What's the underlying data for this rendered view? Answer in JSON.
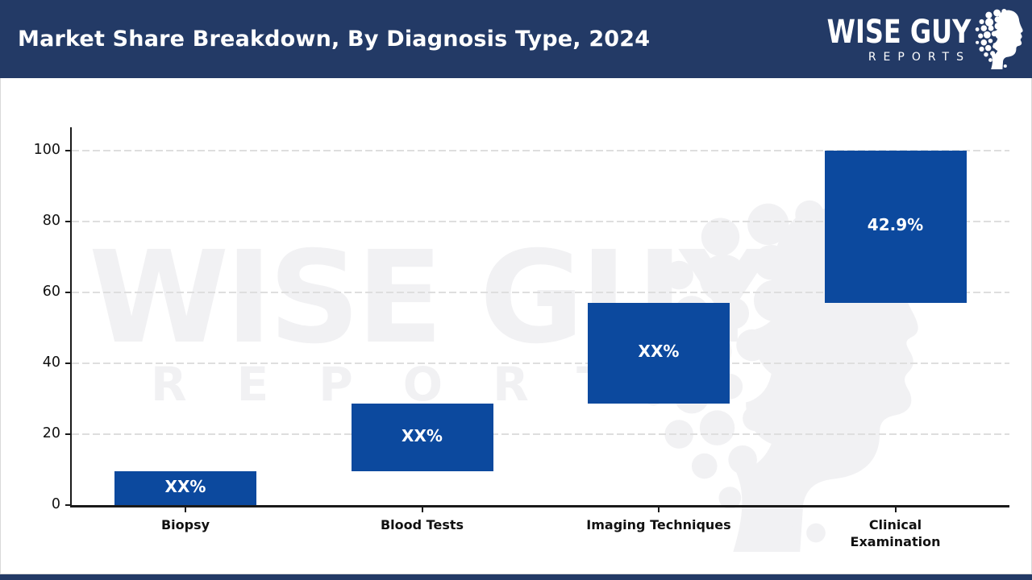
{
  "header": {
    "title": "Market Share Breakdown, By Diagnosis Type, 2024",
    "logo": {
      "name_line": "WISE GUY",
      "reports_line": "REPORTS"
    }
  },
  "watermark": {
    "name_line": "WISE GUY",
    "reports_line": "REPORTS"
  },
  "colors": {
    "header_bg": "#233a66",
    "bar": "#0c499e",
    "grid": "#dedede",
    "axis": "#1a1a1a",
    "watermark": "#f1f1f3",
    "bar_label": "#ffffff"
  },
  "chart_data": {
    "type": "bar",
    "variant": "waterfall",
    "title": "Market Share Breakdown, By Diagnosis Type, 2024",
    "categories": [
      "Biopsy",
      "Blood Tests",
      "Imaging Techniques",
      "Clinical\nExamination"
    ],
    "series": [
      {
        "name": "Market share (%)",
        "segments": [
          {
            "category": "Biopsy",
            "start": 0,
            "end": 9.5,
            "label": "XX%"
          },
          {
            "category": "Blood Tests",
            "start": 9.5,
            "end": 28.6,
            "label": "XX%"
          },
          {
            "category": "Imaging Techniques",
            "start": 28.6,
            "end": 57.1,
            "label": "XX%"
          },
          {
            "category": "Clinical Examination",
            "start": 57.1,
            "end": 100,
            "label": "42.9%"
          }
        ]
      }
    ],
    "yticks": [
      0,
      20,
      40,
      60,
      80,
      100
    ],
    "ylim": [
      0,
      107
    ],
    "xlabel": "",
    "ylabel": "",
    "grid": "horizontal-dashed",
    "legend": "none"
  }
}
